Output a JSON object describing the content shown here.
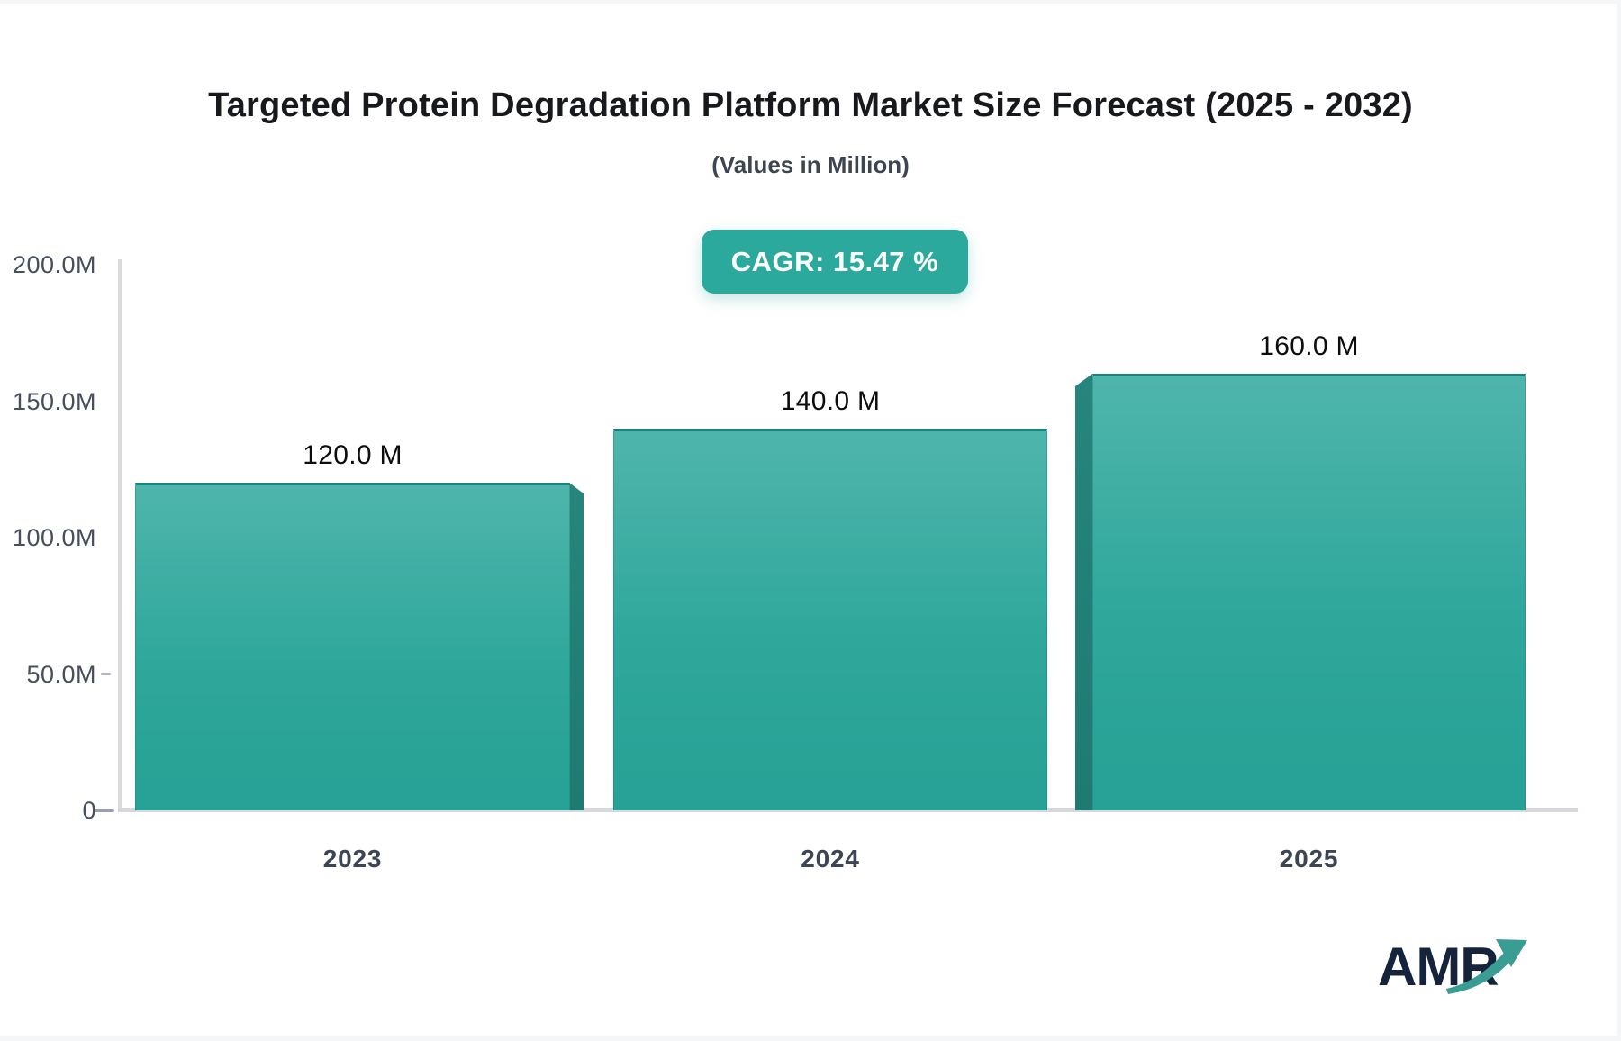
{
  "header": {
    "title": "Targeted Protein Degradation Platform Market Size Forecast (2025 - 2032)",
    "subtitle": "(Values in Million)"
  },
  "badge": {
    "label": "CAGR: 15.47 %",
    "bg_color": "#2ba99c",
    "text_color": "#ffffff"
  },
  "chart_data": {
    "type": "bar",
    "title": "Targeted Protein Degradation Platform Market Size Forecast (2025 - 2032)",
    "subtitle": "(Values in Million)",
    "annotation": "CAGR: 15.47 %",
    "cagr_percent": 15.47,
    "categories": [
      "2023",
      "2024",
      "2025"
    ],
    "values": [
      120.0,
      140.0,
      160.0
    ],
    "value_labels": [
      "120.0 M",
      "140.0 M",
      "160.0 M"
    ],
    "ylabel": "",
    "xlabel": "",
    "ylim": [
      0,
      200
    ],
    "yticks": [
      {
        "value": 200,
        "label": "200.0M"
      },
      {
        "value": 150,
        "label": "150.0M"
      },
      {
        "value": 100,
        "label": "100.0M"
      },
      {
        "value": 50,
        "label": "50.0M"
      },
      {
        "value": 0,
        "label": "0"
      }
    ],
    "grid": false,
    "legend_position": "none",
    "bar_color_top": "#4fb5ac",
    "bar_color_bottom": "#27a195",
    "bar_side_color": "#1f7a72",
    "axis_color": "#d9dbe0"
  },
  "logo": {
    "text": "AMR",
    "text_color": "#15233b",
    "arrow_color": "#3a9d94"
  }
}
